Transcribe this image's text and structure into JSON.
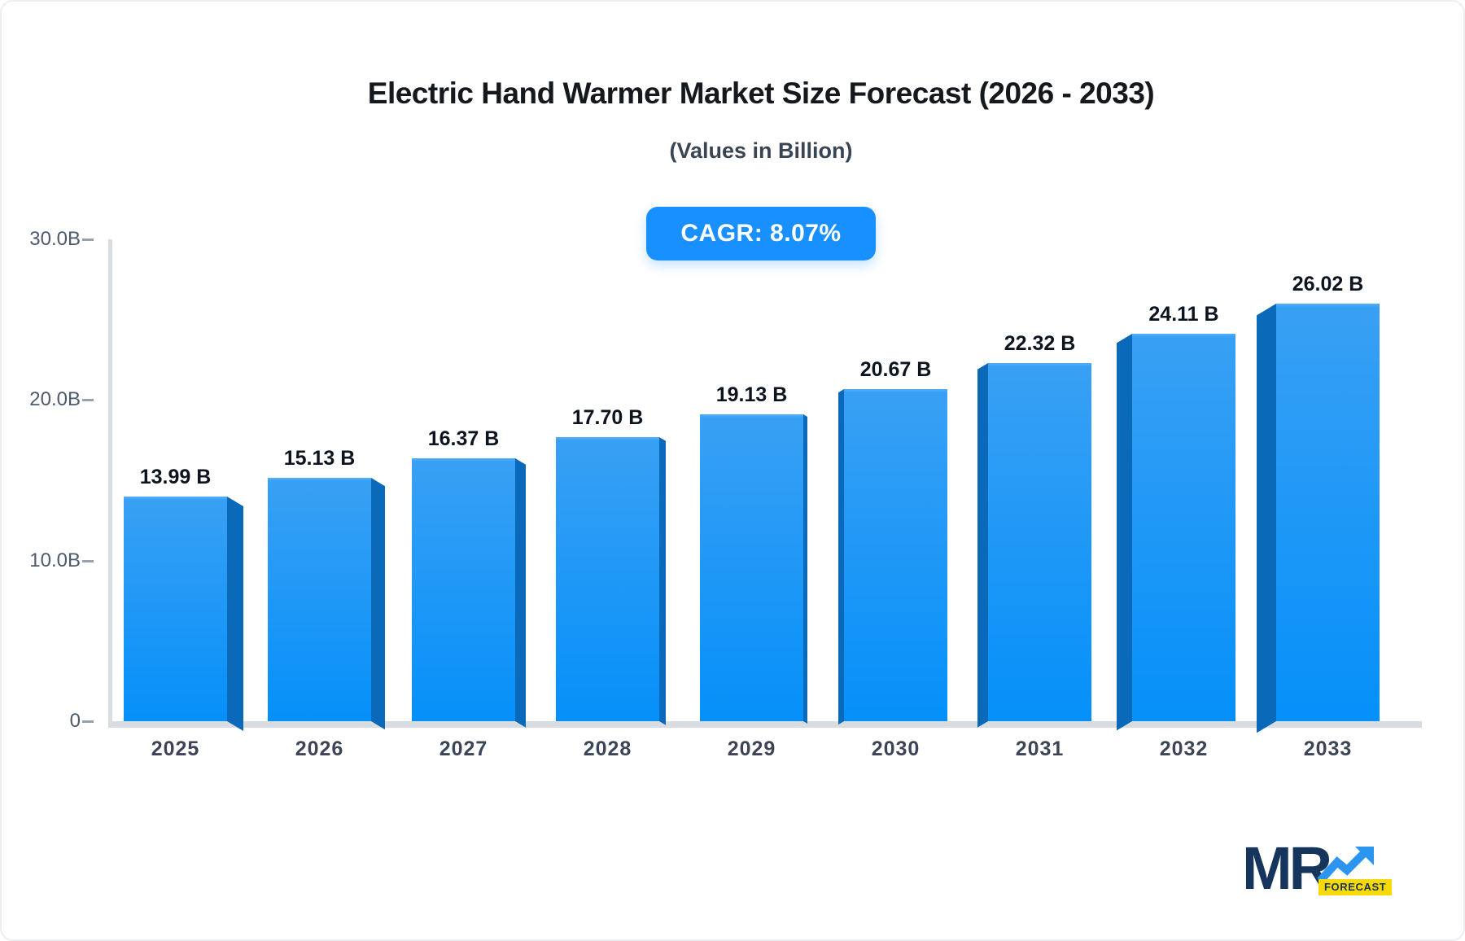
{
  "header": {
    "cagr_label": "CAGR: 8.07%"
  },
  "chart_data": {
    "type": "bar",
    "title": "Electric Hand Warmer Market Size Forecast (2026 - 2033)",
    "subtitle": "(Values in Billion)",
    "cagr": "8.07%",
    "unit": "Billion",
    "categories": [
      "2025",
      "2026",
      "2027",
      "2028",
      "2029",
      "2030",
      "2031",
      "2032",
      "2033"
    ],
    "values": [
      13.99,
      15.13,
      16.37,
      17.7,
      19.13,
      20.67,
      22.32,
      24.11,
      26.02
    ],
    "value_labels": [
      "13.99 B",
      "15.13 B",
      "16.37 B",
      "17.70 B",
      "19.13 B",
      "20.67 B",
      "22.32 B",
      "24.11 B",
      "26.02 B"
    ],
    "ylabel": "",
    "xlabel": "",
    "ylim": [
      0,
      30
    ],
    "y_ticks": [
      {
        "value": 30,
        "label": "30.0B"
      },
      {
        "value": 20,
        "label": "20.0B"
      },
      {
        "value": 10,
        "label": "10.0B"
      },
      {
        "value": 0,
        "label": "0"
      }
    ],
    "grid": false,
    "legend": "none"
  },
  "colors": {
    "badge_blue": "#1890ff",
    "bar_face_top": "#38a0f4",
    "bar_face_bottom": "#0590f9",
    "bar_side": "#0a6ab9",
    "axis_gray": "#d9dce1",
    "tick_label": "#4d5a6b",
    "year_label": "#3b4556",
    "value_label": "#0c141f",
    "logo_navy": "#16355d",
    "logo_yellow": "#f8d908",
    "logo_arrow_blue": "#2b95ef"
  },
  "logo": {
    "mr_text": "MR",
    "forecast_text": "FORECAST"
  }
}
